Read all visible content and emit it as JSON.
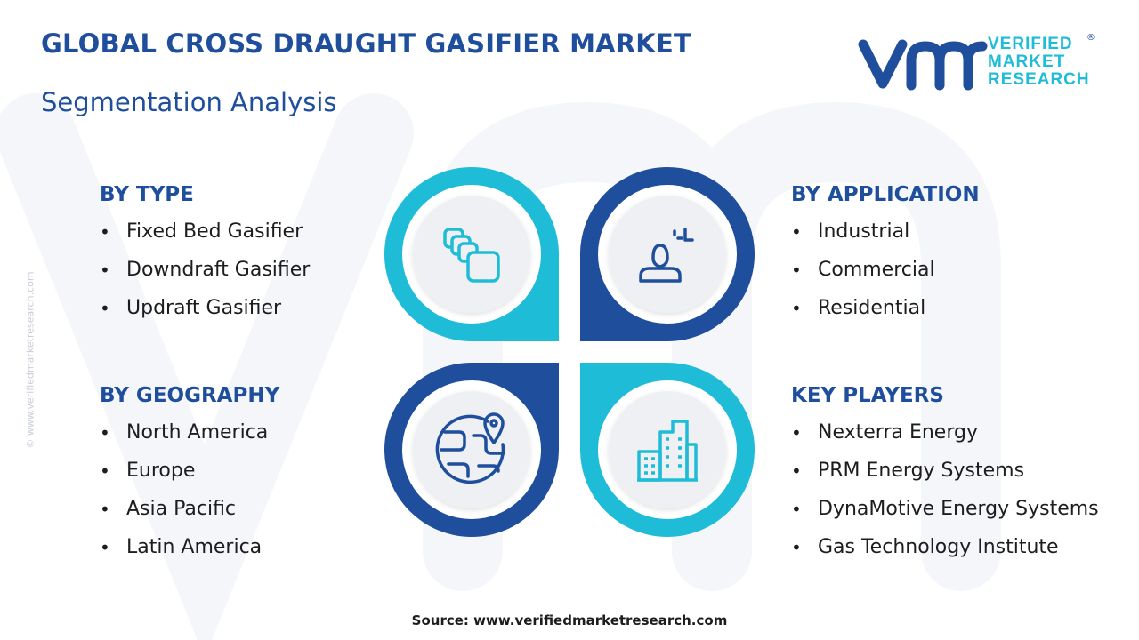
{
  "header": {
    "title": "GLOBAL CROSS DRAUGHT GASIFIER MARKET",
    "subtitle": "Segmentation Analysis"
  },
  "logo": {
    "line1": "VERIFIED",
    "line2": "MARKET",
    "line3": "RESEARCH",
    "registered": "®"
  },
  "watermark_text": "© www.verifiedmarketresearch.com",
  "segments": {
    "type": {
      "heading": "BY TYPE",
      "items": [
        "Fixed Bed Gasifier",
        "Downdraft Gasifier",
        "Updraft Gasifier"
      ]
    },
    "application": {
      "heading": "BY APPLICATION",
      "items": [
        "Industrial",
        "Commercial",
        "Residential"
      ]
    },
    "geography": {
      "heading": "BY GEOGRAPHY",
      "items": [
        "North America",
        "Europe",
        "Asia Pacific",
        "Latin America"
      ]
    },
    "players": {
      "heading": "KEY PLAYERS",
      "items": [
        "Nexterra Energy",
        "PRM Energy Systems",
        "DynaMotive Energy Systems",
        "Gas Technology Institute"
      ]
    }
  },
  "icons": {
    "type": "stacked-squares-icon",
    "application": "person-icon",
    "geography": "globe-location-icon",
    "players": "buildings-icon"
  },
  "colors": {
    "dark_blue": "#1f4e9c",
    "cyan": "#1fbcd8",
    "light_gray": "#eef0f3"
  },
  "footer": {
    "source": "Source: www.verifiedmarketresearch.com"
  }
}
